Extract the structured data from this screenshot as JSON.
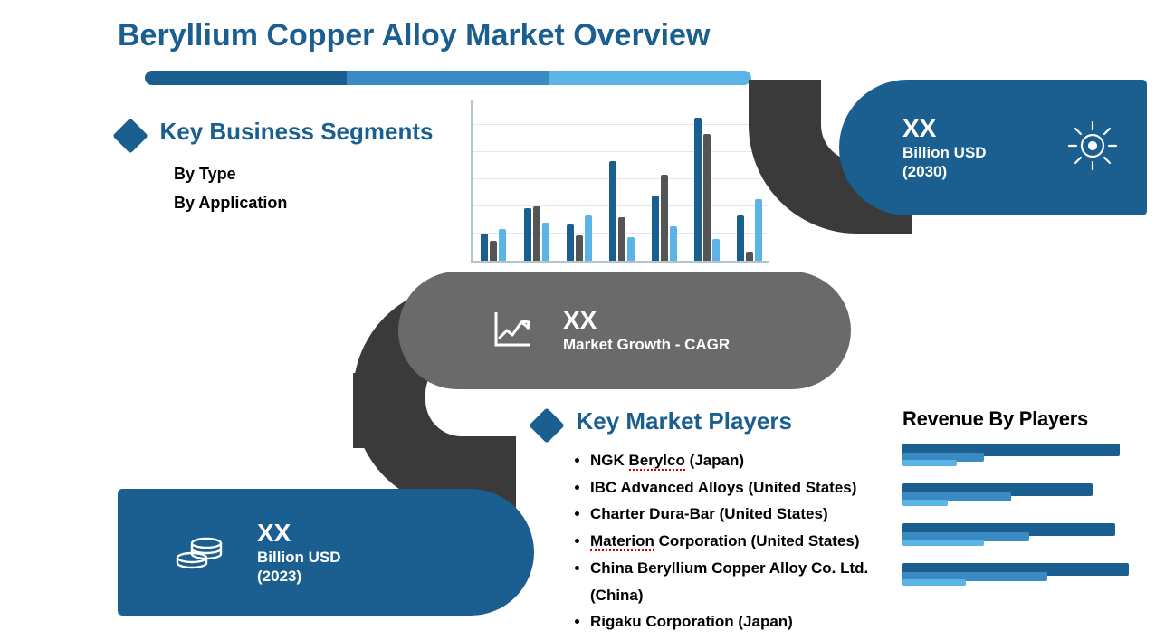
{
  "title": "Beryllium Copper Alloy  Market Overview",
  "segment_bar": {
    "colors": [
      "#1a5f8f",
      "#3a8bc4",
      "#5bb3e6"
    ]
  },
  "segments": {
    "title": "Key Business Segments",
    "items": [
      "By Type",
      "By Application"
    ]
  },
  "bar_chart": {
    "type": "bar",
    "groups": 7,
    "colors": [
      "#1a5f8f",
      "#555555",
      "#5bb3e6"
    ],
    "values": [
      [
        30,
        22,
        35
      ],
      [
        58,
        60,
        42
      ],
      [
        40,
        28,
        50
      ],
      [
        110,
        48,
        26
      ],
      [
        72,
        95,
        38
      ],
      [
        158,
        140,
        24
      ],
      [
        50,
        10,
        68
      ]
    ],
    "y_max": 180,
    "gridlines": 5,
    "border_color": "#b5c5d0",
    "grid_color": "#e0e8ee"
  },
  "ribbon_top": {
    "value": "XX",
    "unit": "Billion USD",
    "year": "(2030)",
    "bg": "#1a5f8f",
    "icon": "lightbulb-icon"
  },
  "ribbon_mid": {
    "value": "XX",
    "label": "Market Growth - CAGR",
    "bg": "#6a6a6a",
    "icon": "line-chart-icon"
  },
  "ribbon_bot": {
    "value": "XX",
    "unit": "Billion USD",
    "year": "(2023)",
    "bg": "#1a5f8f",
    "icon": "coins-icon"
  },
  "players": {
    "title": "Key Market Players",
    "items": [
      "NGK Berylco (Japan)",
      "IBC Advanced Alloys (United States)",
      "Charter Dura-Bar (United States)",
      "Materion Corporation (United States)",
      "China Beryllium Copper Alloy Co. Ltd. (China)",
      "Rigaku Corporation (Japan)"
    ],
    "underlined_words": [
      "Berylco",
      "Materion"
    ]
  },
  "revenue": {
    "title": "Revenue By Players",
    "colors": [
      "#1a5f8f",
      "#3a8bc4",
      "#5bb3e6"
    ],
    "rows": [
      [
        240,
        90,
        60
      ],
      [
        210,
        120,
        50
      ],
      [
        235,
        140,
        90
      ],
      [
        250,
        160,
        70
      ]
    ]
  },
  "dark_curve_color": "#3a3a3a"
}
